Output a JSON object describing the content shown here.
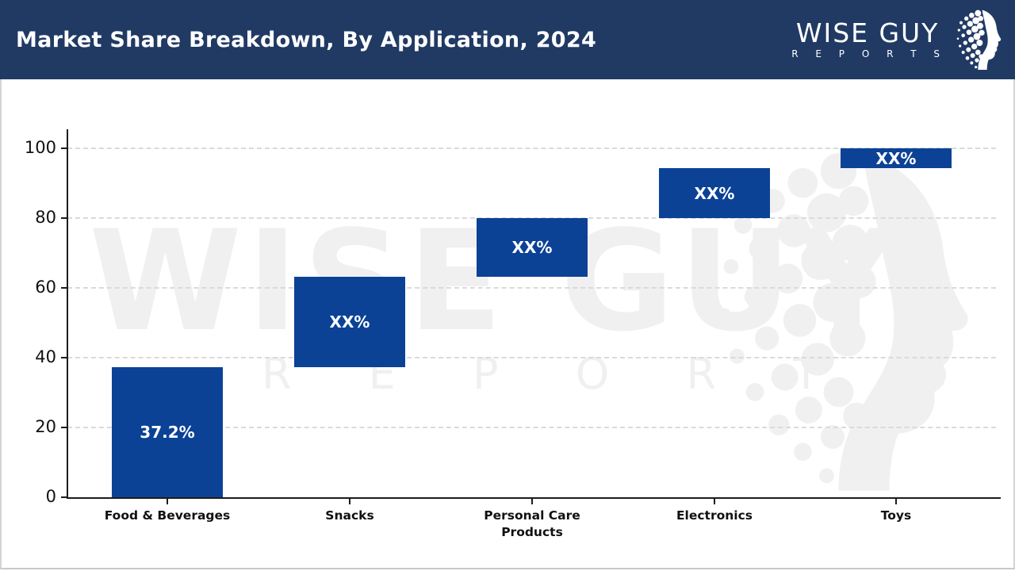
{
  "header": {
    "title": "Market Share Breakdown, By Application, 2024",
    "logo": {
      "wordmark": "WISE GUY",
      "subtext": "R E P O R T S"
    }
  },
  "watermark": {
    "line1": "WISE GUY",
    "line2": "R E P O R T S"
  },
  "chart_data": {
    "type": "bar",
    "subtype": "floating-waterfall",
    "title": "Market Share Breakdown, By Application, 2024",
    "categories": [
      "Food & Beverages",
      "Snacks",
      "Personal Care\nProducts",
      "Electronics",
      "Toys"
    ],
    "segments": [
      {
        "category": "Food & Beverages",
        "start": 0,
        "end": 37.2,
        "label": "37.2%"
      },
      {
        "category": "Snacks",
        "start": 37.2,
        "end": 63.2,
        "label": "XX%"
      },
      {
        "category": "Personal Care Products",
        "start": 63.2,
        "end": 80,
        "label": "XX%"
      },
      {
        "category": "Electronics",
        "start": 80,
        "end": 94.3,
        "label": "XX%"
      },
      {
        "category": "Toys",
        "start": 94.3,
        "end": 100,
        "label": "XX%"
      }
    ],
    "ylim": [
      0,
      100
    ],
    "yticks": [
      0,
      20,
      40,
      60,
      80,
      100
    ],
    "xlabel": "",
    "ylabel": "",
    "grid": "horizontal-dashed",
    "legend": "none",
    "colors": {
      "bar": "#0b4296",
      "bar_label": "#ffffff",
      "header_bg": "#213a64",
      "axis": "#1c1c1c",
      "gridline": "#dadada",
      "watermark": "#f0f0f1"
    }
  }
}
